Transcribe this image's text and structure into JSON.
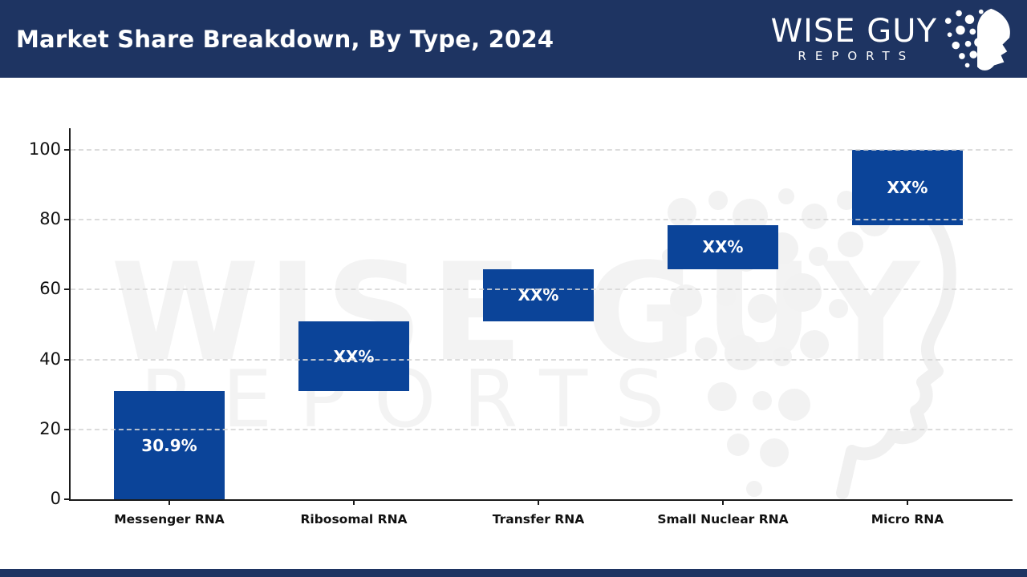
{
  "header": {
    "title": "Market Share Breakdown, By Type, 2024",
    "logo": {
      "line1": "WISE GUY",
      "line2": "REPORTS"
    }
  },
  "watermark": {
    "line1": "WISE GUY",
    "line2": "REPORTS"
  },
  "colors": {
    "header_bg": "#1e3462",
    "footer_bg": "#1e3462",
    "bar": "#0b4499",
    "bar_label": "#ffffff",
    "gridline": "#d6d6d6",
    "axis": "#1a1a1a",
    "watermark": "#f3f3f3"
  },
  "chart_data": {
    "type": "bar",
    "subtype": "waterfall",
    "title": "Market Share Breakdown, By Type, 2024",
    "xlabel": "",
    "ylabel": "",
    "categories": [
      "Messenger RNA",
      "Ribosomal RNA",
      "Transfer RNA",
      "Small Nuclear RNA",
      "Micro RNA"
    ],
    "bars": [
      {
        "category": "Messenger RNA",
        "start": 0,
        "end": 30.9,
        "label": "30.9%"
      },
      {
        "category": "Ribosomal RNA",
        "start": 30.9,
        "end": 50.9,
        "label": "XX%"
      },
      {
        "category": "Transfer RNA",
        "start": 50.9,
        "end": 65.9,
        "label": "XX%"
      },
      {
        "category": "Small Nuclear RNA",
        "start": 65.9,
        "end": 78.4,
        "label": "XX%"
      },
      {
        "category": "Micro RNA",
        "start": 78.4,
        "end": 100,
        "label": "XX%"
      }
    ],
    "yticks": [
      0,
      20,
      40,
      60,
      80,
      100
    ],
    "ylim": [
      0,
      106
    ],
    "grid": {
      "horizontal": true,
      "style": "dashed",
      "drawn_over_bars": true
    },
    "legend": null
  }
}
